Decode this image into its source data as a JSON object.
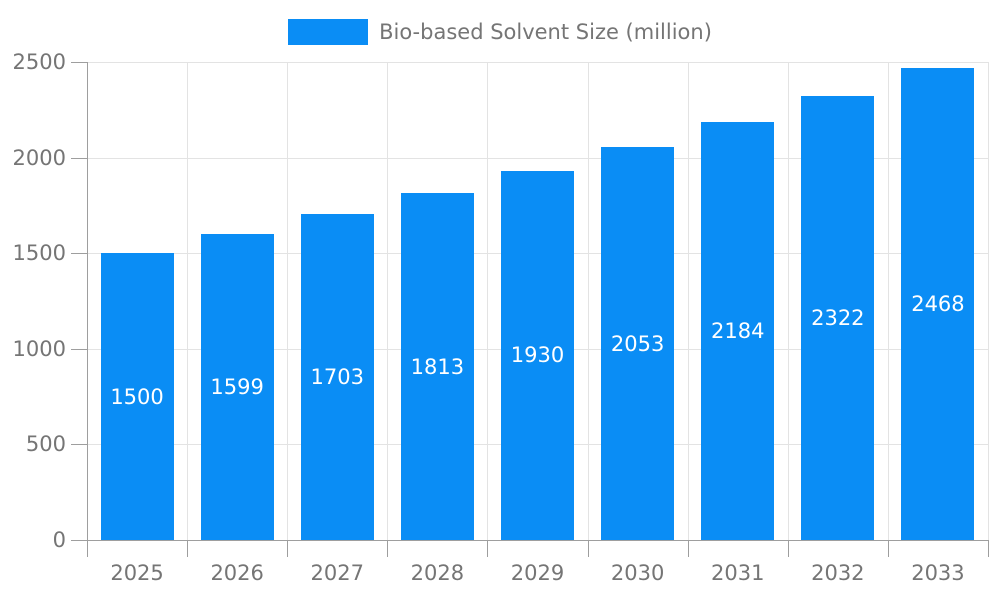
{
  "legend": {
    "label": "Bio-based Solvent Size (million)"
  },
  "chart_data": {
    "type": "bar",
    "title": "Bio-based Solvent Size (million)",
    "legend": "Bio-based Solvent Size (million)",
    "legend_position": "top-center",
    "categories": [
      "2025",
      "2026",
      "2027",
      "2028",
      "2029",
      "2030",
      "2031",
      "2032",
      "2033"
    ],
    "values": [
      1500,
      1599,
      1703,
      1813,
      1930,
      2053,
      2184,
      2322,
      2468
    ],
    "bar_labels": [
      "1500",
      "1599",
      "1703",
      "1813",
      "1930",
      "2053",
      "2184",
      "2322",
      "2468"
    ],
    "xlabel": "",
    "ylabel": "",
    "ylim": [
      0,
      2500
    ],
    "yticks": [
      0,
      500,
      1000,
      1500,
      2000,
      2500
    ],
    "grid": true,
    "bar_label_position": "inside-center",
    "colors": {
      "bar": "#0a8df5",
      "bar_label": "#ffffff",
      "axis_text": "#757575",
      "axis_line": "#9e9e9e",
      "gridline": "#e3e3e3",
      "background": "#ffffff"
    }
  }
}
